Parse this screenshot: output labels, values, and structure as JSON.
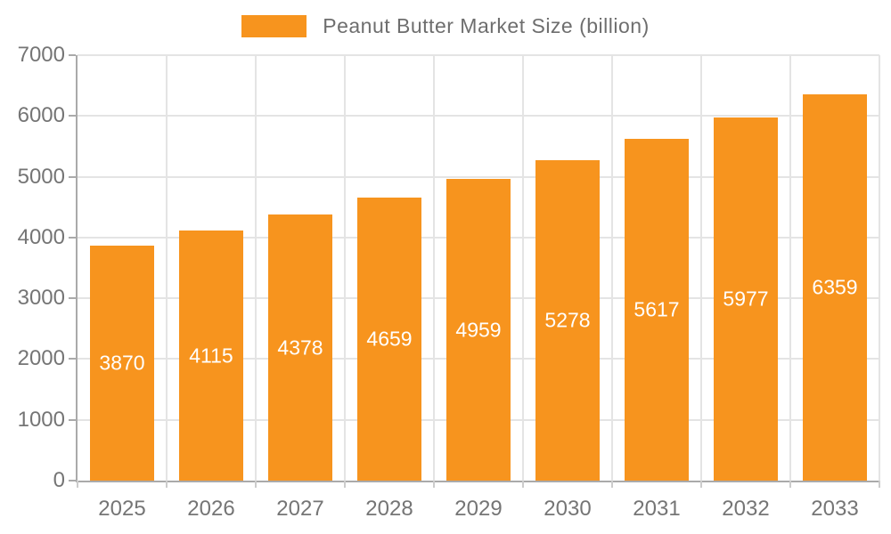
{
  "chart_data": {
    "type": "bar",
    "title": "Peanut Butter Market Size (billion)",
    "categories": [
      "2025",
      "2026",
      "2027",
      "2028",
      "2029",
      "2030",
      "2031",
      "2032",
      "2033"
    ],
    "values": [
      3870,
      4115,
      4378,
      4659,
      4959,
      5278,
      5617,
      5977,
      6359
    ],
    "series": [
      {
        "name": "Peanut Butter Market Size (billion)",
        "values": [
          3870,
          4115,
          4378,
          4659,
          4959,
          5278,
          5617,
          5977,
          6359
        ]
      }
    ],
    "xlabel": "",
    "ylabel": "",
    "ylim": [
      0,
      7000
    ],
    "yticks": [
      0,
      1000,
      2000,
      3000,
      4000,
      5000,
      6000,
      7000
    ],
    "grid": true,
    "legend_position": "top-center",
    "value_labels": "inside-center"
  },
  "colors": {
    "bar": "#f7941e",
    "bar_value_label": "#ffffff",
    "axis_text": "#757575",
    "legend_text": "#6e6e6e",
    "gridline": "#e4e4e4",
    "axis_line": "#aaaaaa",
    "background": "#ffffff"
  },
  "legend": {
    "label": "Peanut Butter Market Size (billion)"
  }
}
